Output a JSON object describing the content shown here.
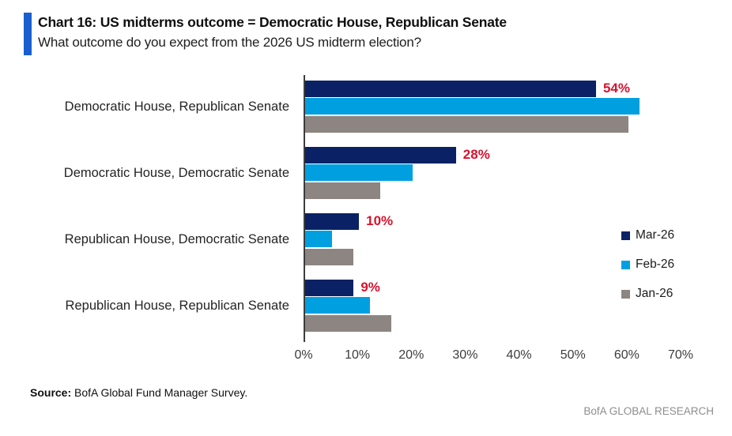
{
  "header": {
    "title": "Chart 16: US midterms outcome = Democratic House, Republican Senate",
    "subtitle": "What outcome do you expect from the 2026 US midterm election?",
    "accent_color": "#1A5FD0"
  },
  "chart_data": {
    "type": "bar",
    "orientation": "horizontal",
    "title": "Chart 16: US midterms outcome = Democratic House, Republican Senate",
    "categories": [
      "Democratic House, Republican Senate",
      "Democratic House, Democratic Senate",
      "Republican House, Democratic Senate",
      "Republican House, Republican Senate"
    ],
    "series": [
      {
        "name": "Mar-26",
        "color": "#0A2265",
        "values": [
          54,
          28,
          10,
          9
        ]
      },
      {
        "name": "Feb-26",
        "color": "#00A0E0",
        "values": [
          62,
          20,
          5,
          12
        ]
      },
      {
        "name": "Jan-26",
        "color": "#8D8581",
        "values": [
          60,
          14,
          9,
          16
        ]
      }
    ],
    "data_labels": {
      "series": "Mar-26",
      "color": "#D8122D",
      "values": [
        "54%",
        "28%",
        "10%",
        "9%"
      ]
    },
    "x_axis": {
      "min": 0,
      "max": 70,
      "tick_step": 10,
      "tick_labels": [
        "0%",
        "10%",
        "20%",
        "30%",
        "40%",
        "50%",
        "60%",
        "70%"
      ]
    },
    "legend": {
      "position": "right",
      "entries": [
        "Mar-26",
        "Feb-26",
        "Jan-26"
      ]
    },
    "grid": false
  },
  "footer": {
    "source_label": "Source:",
    "source_text": " BofA Global Fund Manager Survey.",
    "brand": "BofA GLOBAL RESEARCH"
  }
}
